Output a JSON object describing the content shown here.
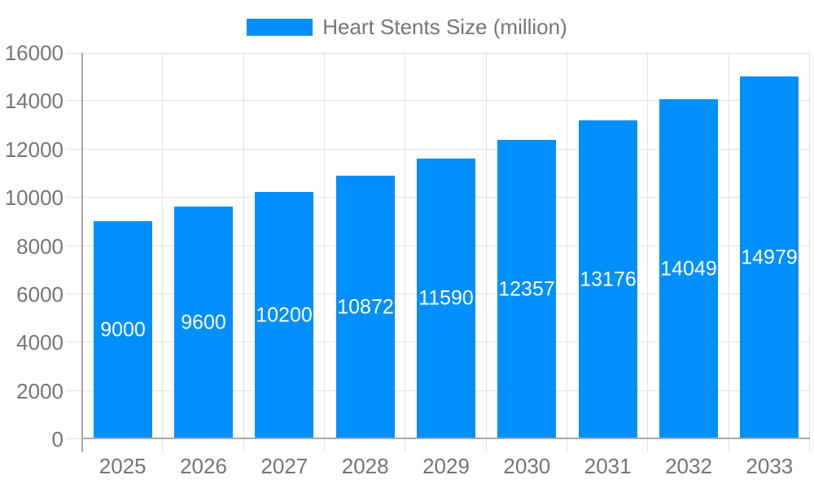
{
  "chart_data": {
    "type": "bar",
    "title": "Heart Stents Size (million)",
    "legend_position": "top",
    "categories": [
      "2025",
      "2026",
      "2027",
      "2028",
      "2029",
      "2030",
      "2031",
      "2032",
      "2033"
    ],
    "series": [
      {
        "name": "Heart Stents Size (million)",
        "values": [
          9000,
          9600,
          10200,
          10872,
          11590,
          12357,
          13176,
          14049,
          14979
        ]
      }
    ],
    "data_labels_shown": true,
    "xlabel": "",
    "ylabel": "",
    "ylim": [
      0,
      16000
    ],
    "yticks": [
      0,
      2000,
      4000,
      6000,
      8000,
      10000,
      12000,
      14000,
      16000
    ],
    "grid": true,
    "colors": {
      "bar": "#008FFB",
      "data_label_text": "#ffffff",
      "axis_text": "#757575",
      "grid_line": "#e2e2e2",
      "axis_line": "#a8a8a8",
      "background": "#ffffff"
    }
  }
}
